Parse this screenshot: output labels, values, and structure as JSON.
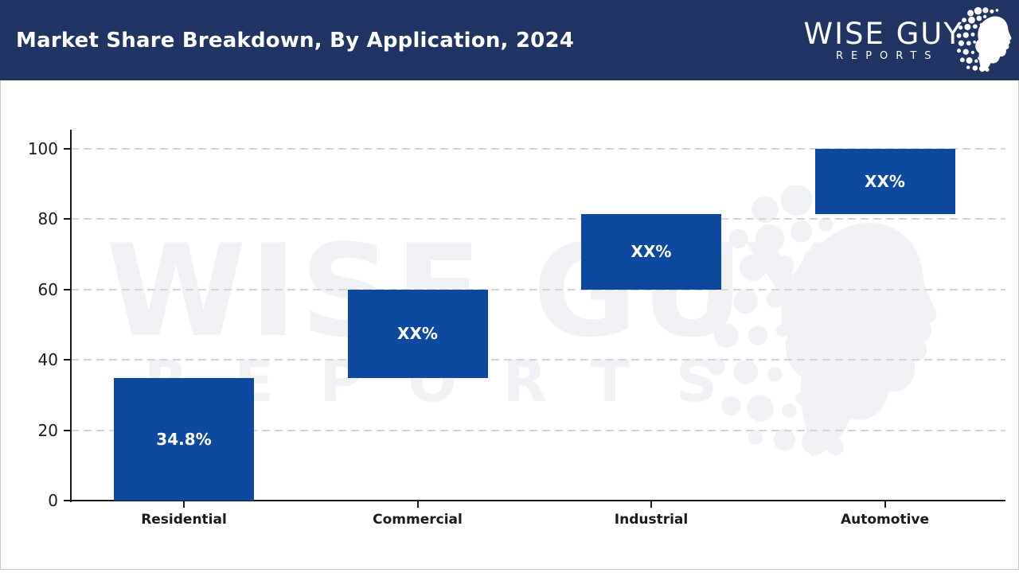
{
  "header": {
    "title": "Market Share Breakdown, By Application, 2024",
    "logo": {
      "line1": "WISE GUY",
      "line2": "REPORTS"
    }
  },
  "watermark": {
    "line1": "WISE GUY",
    "line2": "REPORTS"
  },
  "chart_data": {
    "type": "bar",
    "subtype": "waterfall",
    "title": "Market Share Breakdown, By Application, 2024",
    "categories": [
      "Residential",
      "Commercial",
      "Industrial",
      "Automotive"
    ],
    "segments": [
      [
        0,
        34.8
      ],
      [
        34.8,
        60
      ],
      [
        60,
        81.5
      ],
      [
        81.5,
        100
      ]
    ],
    "values": [
      34.8,
      25.2,
      21.5,
      18.5
    ],
    "bar_labels": [
      "34.8%",
      "XX%",
      "XX%",
      "XX%"
    ],
    "xlabel": "",
    "ylabel": "",
    "ylim": [
      0,
      100
    ],
    "y_ticks": [
      0,
      20,
      40,
      60,
      80,
      100
    ],
    "grid": "horizontal dashed",
    "legend": "none"
  },
  "colors": {
    "header_bg": "#203564",
    "title": "#ffffff",
    "logo": "#ffffff",
    "bar": "#0d4a9f",
    "bar_label": "#ffffff",
    "grid": "#d7d7d7",
    "axis": "#1a1a1a",
    "text": "#1a1a1a",
    "watermark": "#f0f1f4",
    "border": "#c9c9c9"
  }
}
